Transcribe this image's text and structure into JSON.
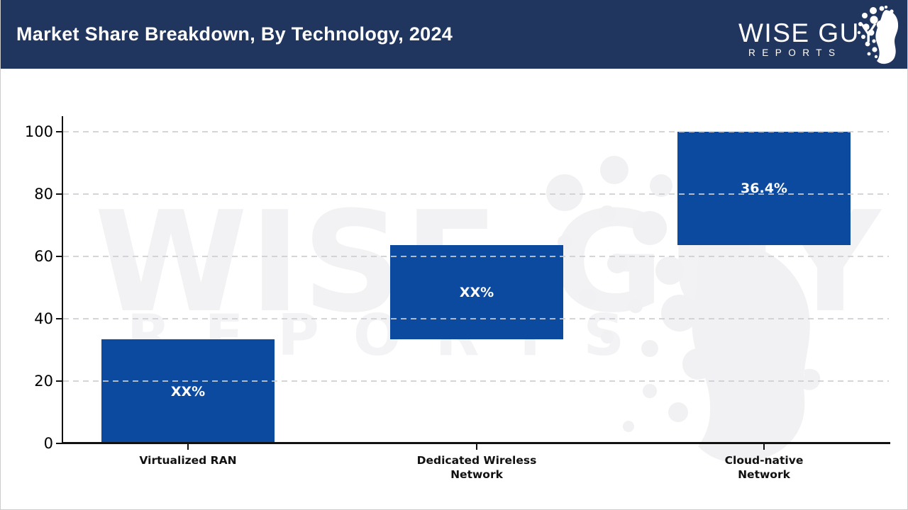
{
  "header": {
    "title": "Market Share Breakdown, By Technology, 2024",
    "logo": {
      "line1": "WISE GUY",
      "line2": "REPORTS"
    }
  },
  "watermark": {
    "line1": "WISE GUY",
    "line2": "REPORTS"
  },
  "chart_data": {
    "type": "bar",
    "subtype": "waterfall-floating-bars",
    "title": "Market Share Breakdown, By Technology, 2024",
    "categories": [
      "Virtualized RAN",
      "Dedicated Wireless\nNetwork",
      "Cloud-native\nNetwork"
    ],
    "series": [
      {
        "name": "Market Share %",
        "segments": [
          {
            "from": 0,
            "to": 33.3
          },
          {
            "from": 33.3,
            "to": 63.6
          },
          {
            "from": 63.6,
            "to": 100
          }
        ]
      }
    ],
    "bar_labels": [
      "XX%",
      "XX%",
      "36.4%"
    ],
    "xlabel": "",
    "ylabel": "",
    "ylim": [
      0,
      105
    ],
    "yticks": [
      0,
      20,
      40,
      60,
      80,
      100
    ],
    "grid": "horizontal-dashed",
    "legend": "none",
    "bar_color": "#0b4a9f",
    "label_color": "#ffffff"
  },
  "colors": {
    "header_bg": "#21365f",
    "bar": "#0b4a9f",
    "grid": "#cccccc",
    "axis": "#111111",
    "watermark": "#f2f2f4"
  }
}
